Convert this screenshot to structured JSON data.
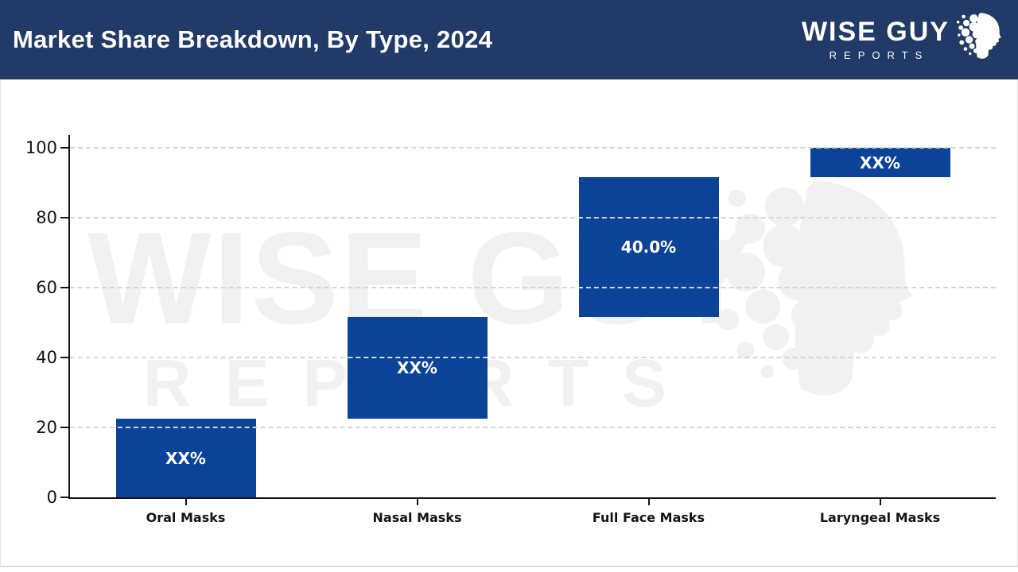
{
  "header": {
    "title": "Market Share Breakdown, By Type, 2024",
    "logo": {
      "line1": "WISE GUY",
      "line2": "REPORTS"
    }
  },
  "watermark": {
    "line1": "WISE GUY",
    "line2": "REPORTS"
  },
  "colors": {
    "header_bg": "#223a67",
    "bar": "#0b4399",
    "grid": "#d6d6d6",
    "axis": "#141414",
    "watermark": "#f1f1f1",
    "bar_label_text": "#ffffff",
    "title_text": "#ffffff"
  },
  "chart_data": {
    "type": "bar",
    "subtype": "waterfall",
    "title": "Market Share Breakdown, By Type, 2024",
    "categories": [
      "Oral Masks",
      "Nasal Masks",
      "Full Face Masks",
      "Laryngeal Masks"
    ],
    "series": [
      {
        "name": "Market Share",
        "segments": [
          {
            "start": 0,
            "end": 22.5,
            "size": 22.5,
            "label": "XX%"
          },
          {
            "start": 22.5,
            "end": 51.5,
            "size": 29.0,
            "label": "XX%"
          },
          {
            "start": 51.5,
            "end": 91.5,
            "size": 40.0,
            "label": "40.0%"
          },
          {
            "start": 91.5,
            "end": 100,
            "size": 8.5,
            "label": "XX%"
          }
        ]
      }
    ],
    "xlabel": "",
    "ylabel": "",
    "yticks": [
      0,
      20,
      40,
      60,
      80,
      100
    ],
    "ylim": [
      0,
      104
    ],
    "grid": "horizontal dashed lines drawn over bars",
    "legend": "none"
  }
}
